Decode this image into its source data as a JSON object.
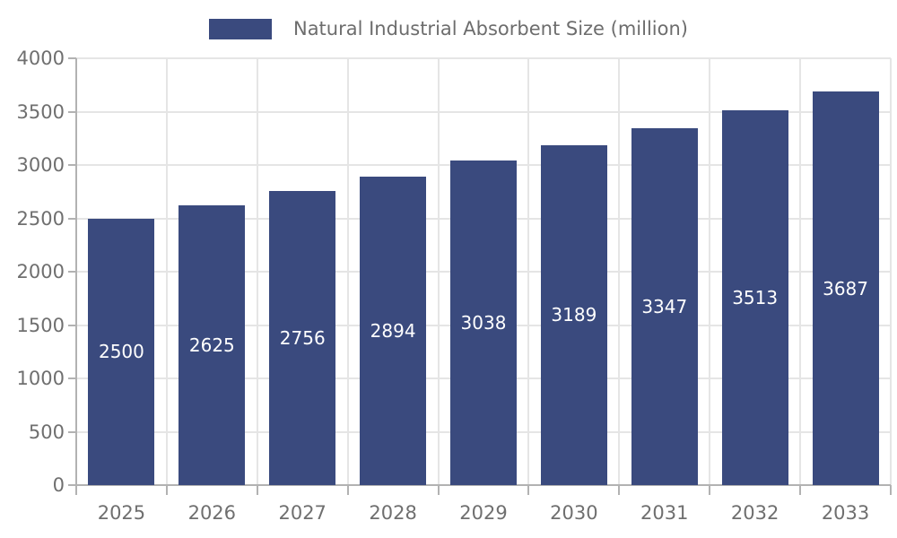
{
  "legend": {
    "label": "Natural Industrial Absorbent Size (million)"
  },
  "chart_data": {
    "type": "bar",
    "title": "",
    "legend": "Natural Industrial Absorbent Size (million)",
    "categories": [
      "2025",
      "2026",
      "2027",
      "2028",
      "2029",
      "2030",
      "2031",
      "2032",
      "2033"
    ],
    "values": [
      2500,
      2625,
      2756,
      2894,
      3038,
      3189,
      3347,
      3513,
      3687
    ],
    "xlabel": "",
    "ylabel": "",
    "ylim": [
      0,
      4000
    ],
    "yticks": [
      0,
      500,
      1000,
      1500,
      2000,
      2500,
      3000,
      3500,
      4000
    ],
    "grid": true,
    "legend_position": "top-center",
    "value_label_position": "center-of-bar"
  },
  "colors": {
    "bar": "#3A4A7E",
    "grid": "#E5E5E5",
    "axis": "#B2B2B2",
    "tick_label": "#6F6F6F",
    "legend_text": "#6D6D6D",
    "value_label": "#FFFFFF",
    "background": "#FFFFFF"
  }
}
